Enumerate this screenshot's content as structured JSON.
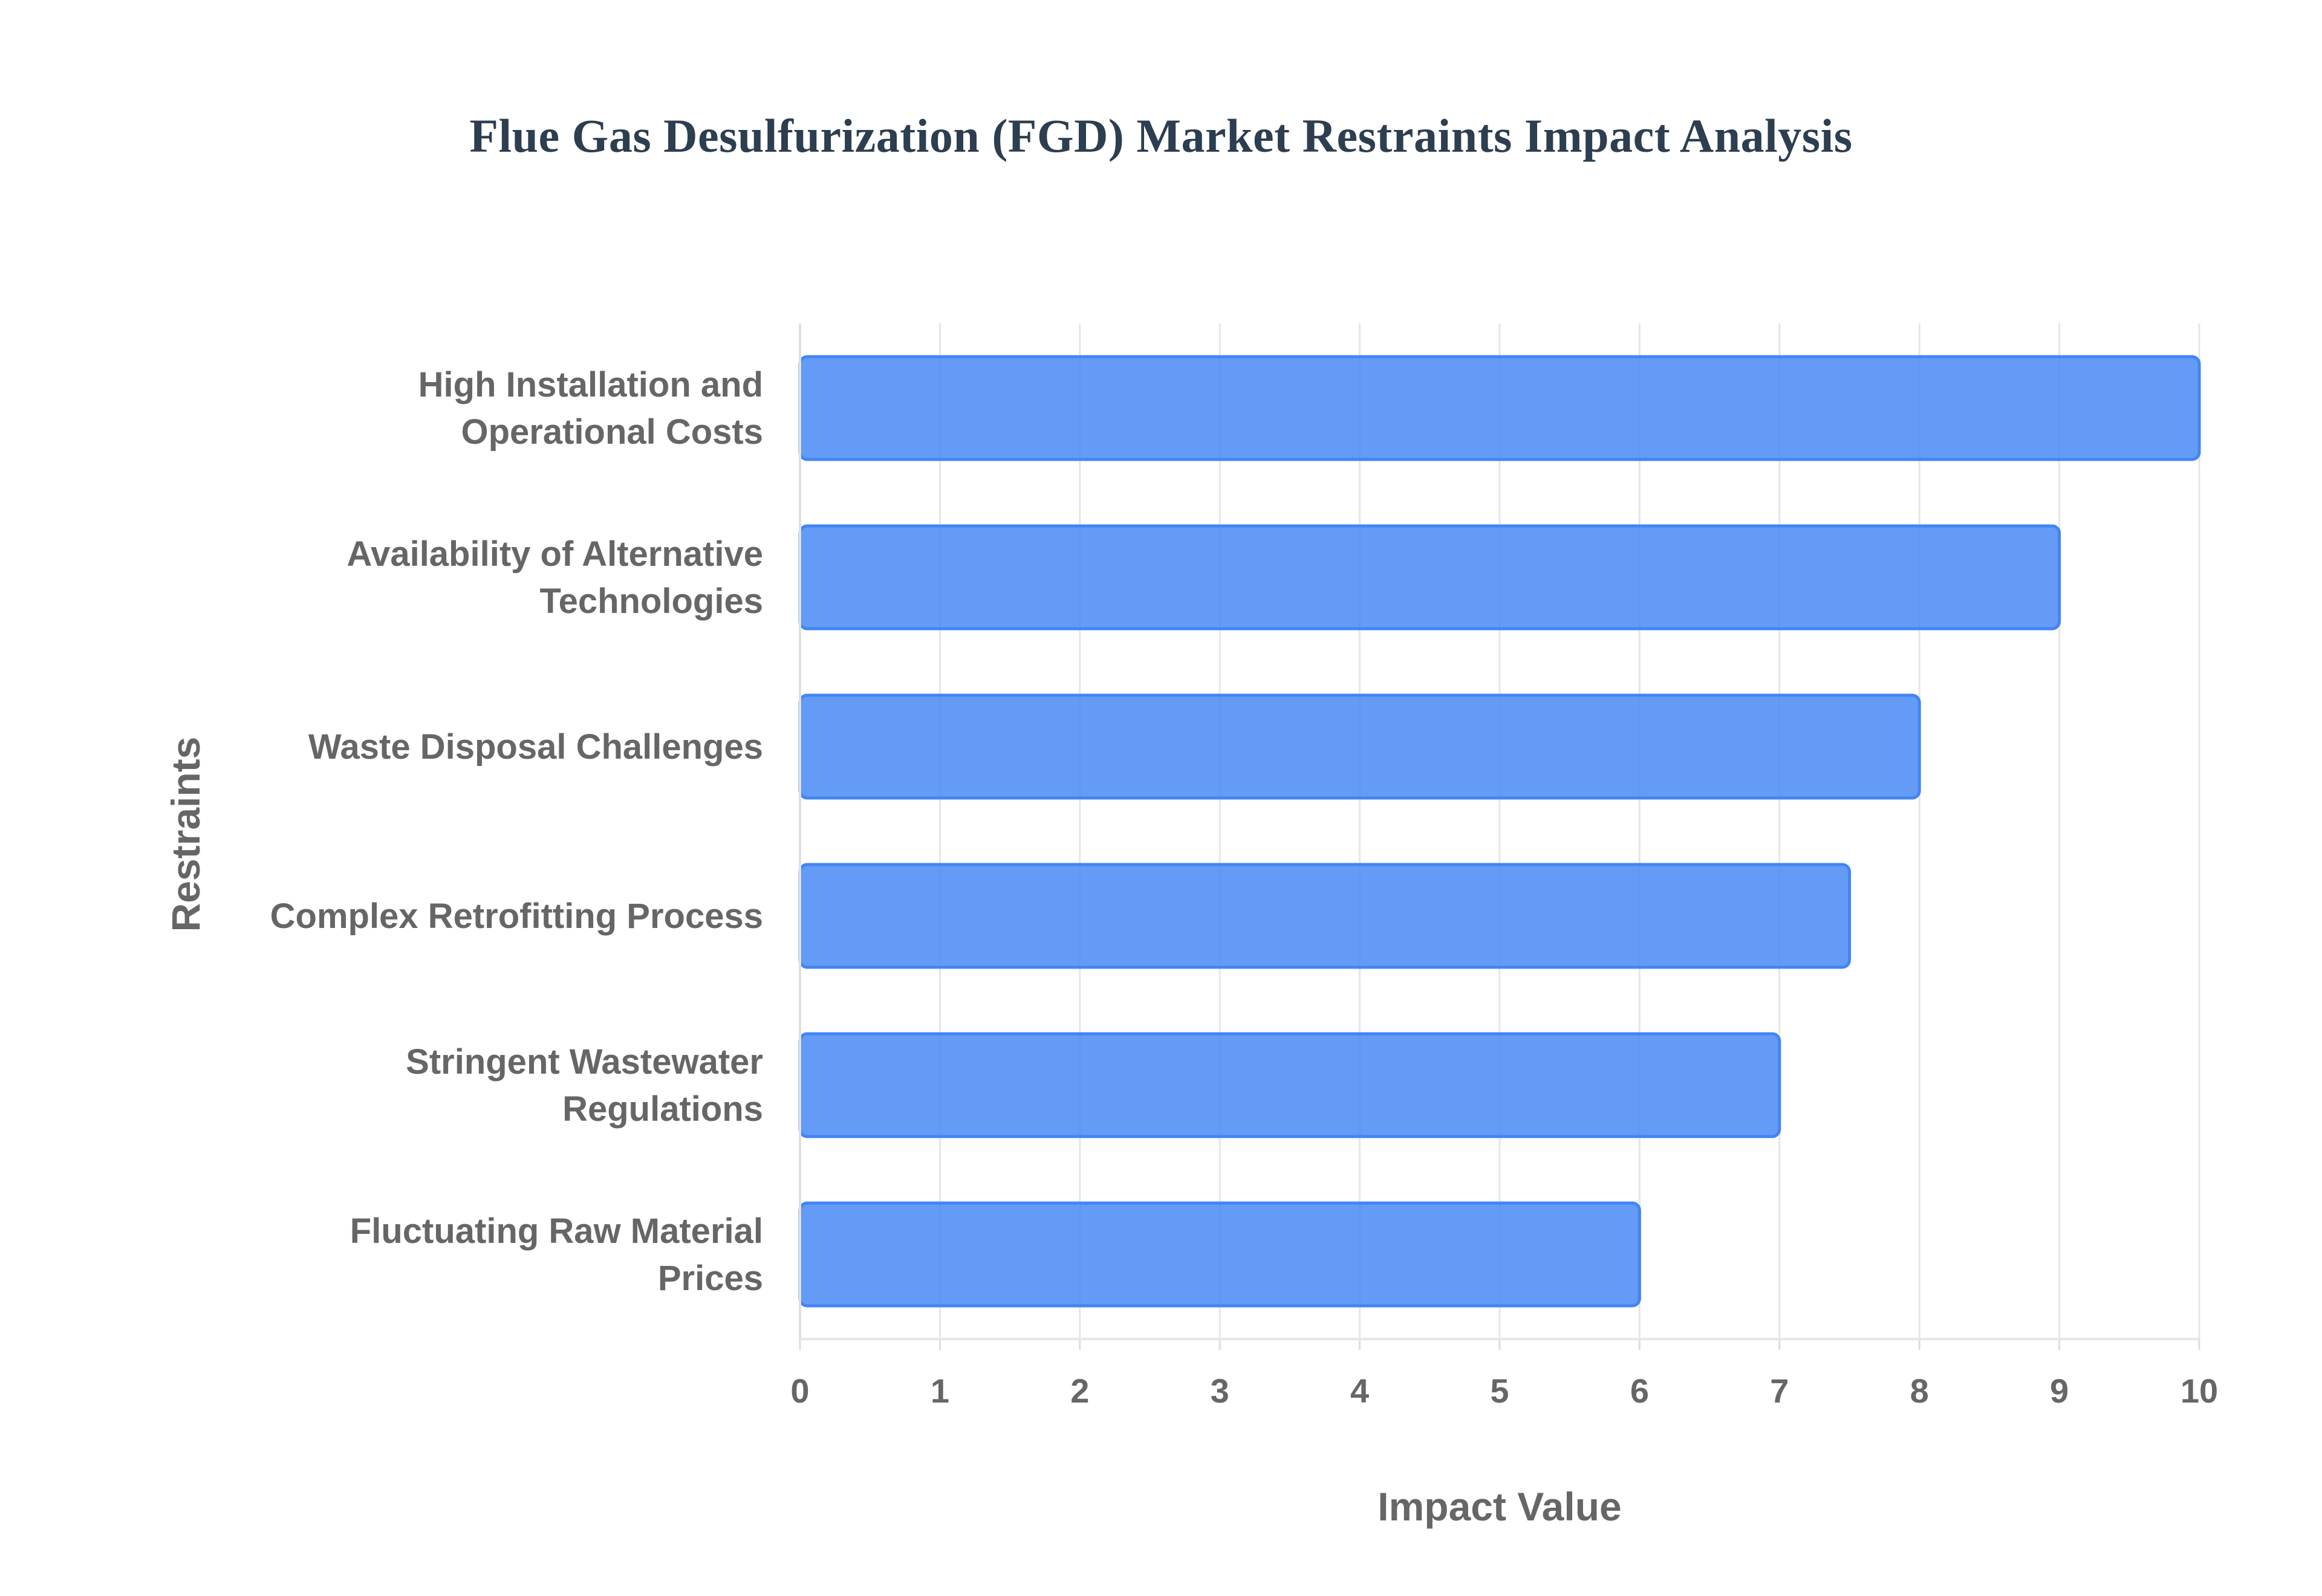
{
  "chart_data": {
    "type": "bar",
    "orientation": "horizontal",
    "title": "Flue Gas Desulfurization (FGD) Market Restraints Impact Analysis",
    "xlabel": "Impact Value",
    "ylabel": "Restraints",
    "xlim": [
      0,
      10
    ],
    "x_ticks": [
      "0",
      "1",
      "2",
      "3",
      "4",
      "5",
      "6",
      "7",
      "8",
      "9",
      "10"
    ],
    "grid": true,
    "bar_color": "#4285f4",
    "categories": [
      [
        "High Installation and",
        "Operational Costs"
      ],
      [
        "Availability of Alternative",
        "Technologies"
      ],
      [
        "Waste Disposal Challenges"
      ],
      [
        "Complex Retrofitting Process"
      ],
      [
        "Stringent Wastewater",
        "Regulations"
      ],
      [
        "Fluctuating Raw Material",
        "Prices"
      ]
    ],
    "values": [
      10,
      9,
      8,
      7.5,
      7,
      6
    ]
  }
}
